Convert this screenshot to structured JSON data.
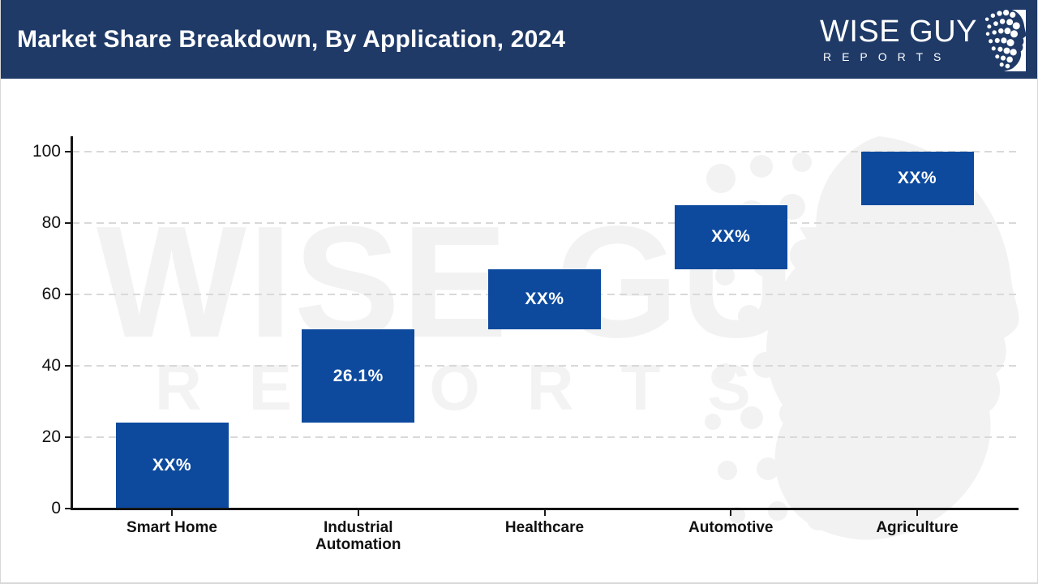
{
  "header": {
    "title": "Market Share Breakdown, By Application, 2024",
    "bg_color": "#1f3a67",
    "logo": {
      "wordmark": "WISE GUY",
      "subtitle": "REPORTS"
    }
  },
  "watermark": {
    "line1": "WISE GUY",
    "line2": "REPORTS"
  },
  "chart_data": {
    "type": "bar",
    "subtype": "floating-segment-waterfall",
    "title": "Market Share Breakdown, By Application, 2024",
    "categories": [
      "Smart Home",
      "Industrial Automation",
      "Healthcare",
      "Automotive",
      "Agriculture"
    ],
    "segments": [
      {
        "category": "Smart Home",
        "start": 0,
        "end": 24,
        "label": "XX%"
      },
      {
        "category": "Industrial Automation",
        "start": 24,
        "end": 50.1,
        "label": "26.1%"
      },
      {
        "category": "Healthcare",
        "start": 50.1,
        "end": 67,
        "label": "XX%"
      },
      {
        "category": "Automotive",
        "start": 67,
        "end": 85,
        "label": "XX%"
      },
      {
        "category": "Agriculture",
        "start": 85,
        "end": 100,
        "label": "XX%"
      }
    ],
    "xlabel": "",
    "ylabel": "",
    "ylim": [
      0,
      100
    ],
    "yticks": [
      0,
      20,
      40,
      60,
      80,
      100
    ],
    "grid": "horizontal-dashed",
    "legend": "none",
    "bar_color": "#0d4a9e",
    "bar_label_color": "#ffffff",
    "axis_color": "#141414",
    "gridline_color": "#d9d9d9"
  }
}
